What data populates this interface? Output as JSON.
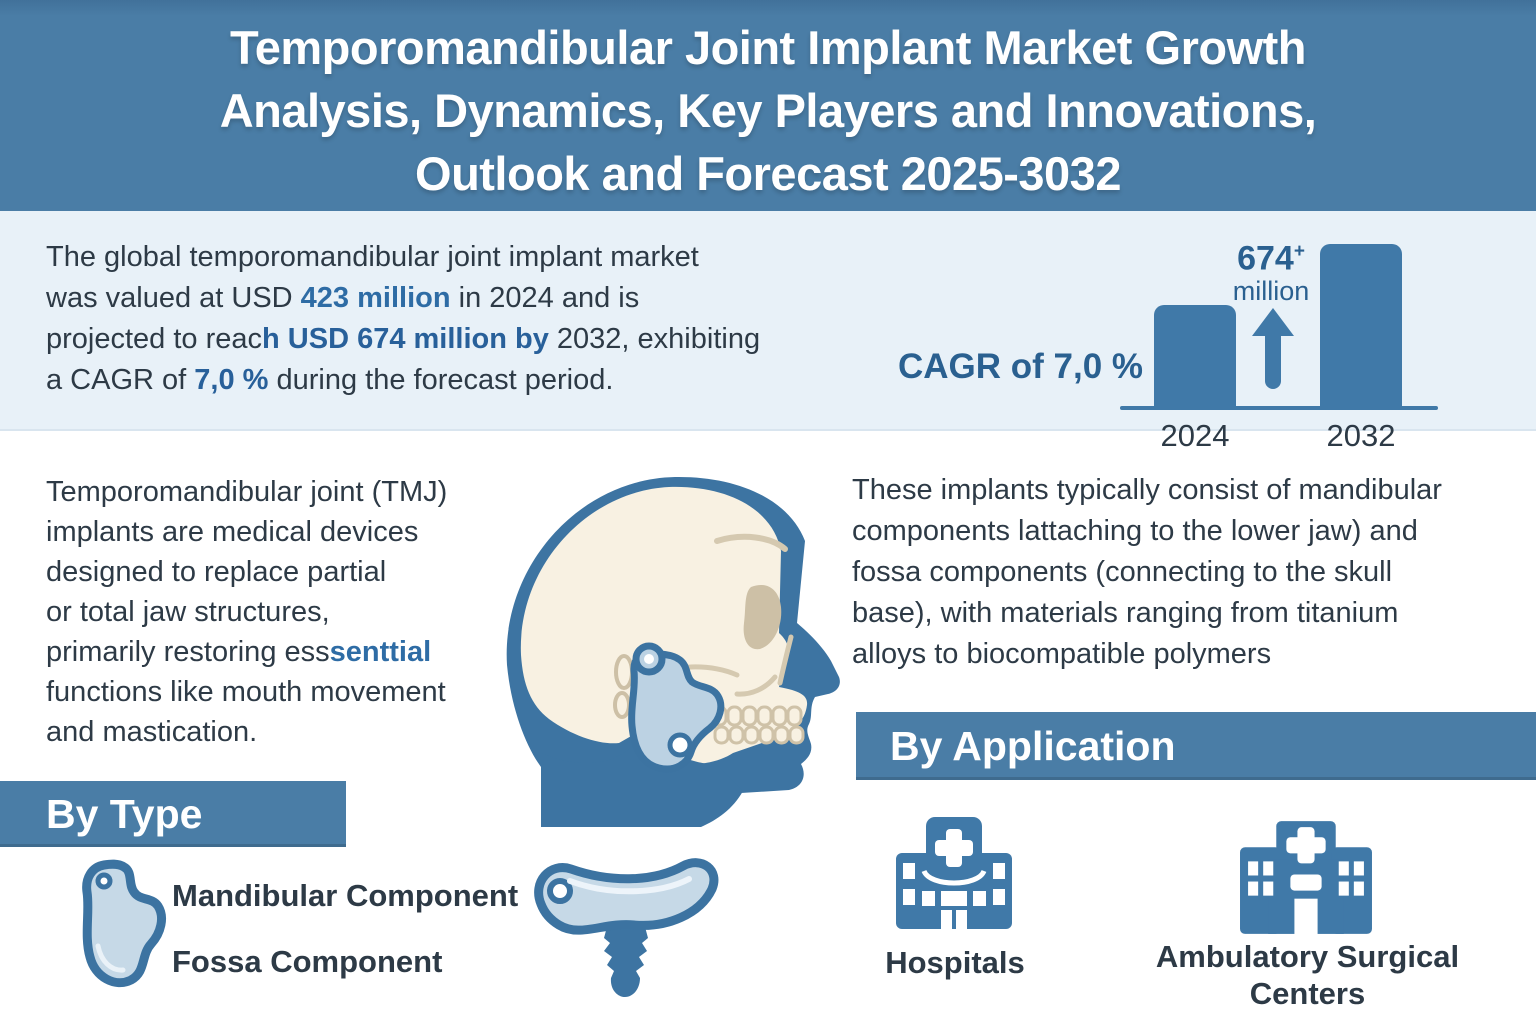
{
  "header": {
    "title_lines": [
      "Temporomandibular Joint Implant Market Growth",
      "Analysis, Dynamics, Key Players and Innovations,",
      "Outlook and Forecast 2025-3032"
    ]
  },
  "summary_lines": [
    [
      {
        "t": "The global temporomandibular joint implant market"
      }
    ],
    [
      {
        "t": "was valued at USD "
      },
      {
        "t": "423 million",
        "c": "accent"
      },
      {
        "t": " in 2024 and is"
      }
    ],
    [
      {
        "t": "projected to reac"
      },
      {
        "t": "h USD 674 million by",
        "c": "accent-bold"
      },
      {
        "t": " 2032, exhibiting"
      }
    ],
    [
      {
        "t": "a CAGR of "
      },
      {
        "t": "7,0 %",
        "c": "accent-bold"
      },
      {
        "t": " during the forecast period."
      }
    ]
  ],
  "chart": {
    "cagr_label": "CAGR of 7,0 %",
    "value": "674",
    "value_suffix": "+",
    "value_unit": "million"
  },
  "chart_data": {
    "type": "bar",
    "title": "Temporomandibular joint implant market size (USD million)",
    "categories": [
      "2024",
      "2032"
    ],
    "values": [
      423,
      674
    ],
    "unit": "USD million",
    "cagr_percent": 7.0,
    "ylim": [
      0,
      700
    ],
    "grid": false,
    "legend": false
  },
  "tmj_lines": [
    [
      {
        "t": "Temporomandibular joint (TMJ)"
      }
    ],
    [
      {
        "t": "implants are medical devices"
      }
    ],
    [
      {
        "t": "designed to replace partial"
      }
    ],
    [
      {
        "t": "or total jaw structures,"
      }
    ],
    [
      {
        "t": "primarily restoring ess"
      },
      {
        "t": "senttial",
        "c": "accent"
      }
    ],
    [
      {
        "t": "functions like mouth movement"
      }
    ],
    [
      {
        "t": "and mastication."
      }
    ]
  ],
  "implants_lines": [
    [
      {
        "t": "These implants typically consist of mandibular"
      }
    ],
    [
      {
        "t": "components lattaching to the lower jaw) and"
      }
    ],
    [
      {
        "t": "fossa components (connecting to the skull"
      }
    ],
    [
      {
        "t": "base), with materials ranging from titanium"
      }
    ],
    [
      {
        "t": "alloys to biocompatible polymers"
      }
    ]
  ],
  "by_type": {
    "title": "By Type",
    "items": [
      "Mandibular Component",
      "Fossa Component"
    ]
  },
  "by_application": {
    "title": "By Application",
    "items": [
      "Hospitals",
      "Ambulatory Surgical Centers"
    ]
  },
  "colors": {
    "banner_blue": "#4a7da6",
    "panel_blue": "#e8f1f8",
    "bar_blue": "#4079a8",
    "accent_blue": "#2e6ca5",
    "accent_dark_blue": "#28609a",
    "text_dark": "#2d3a46",
    "skull_cream": "#f8f1e2",
    "skull_tan": "#cdc0a6",
    "implant_fill": "#bcd2e3",
    "implant_outline": "#3c73a1"
  }
}
